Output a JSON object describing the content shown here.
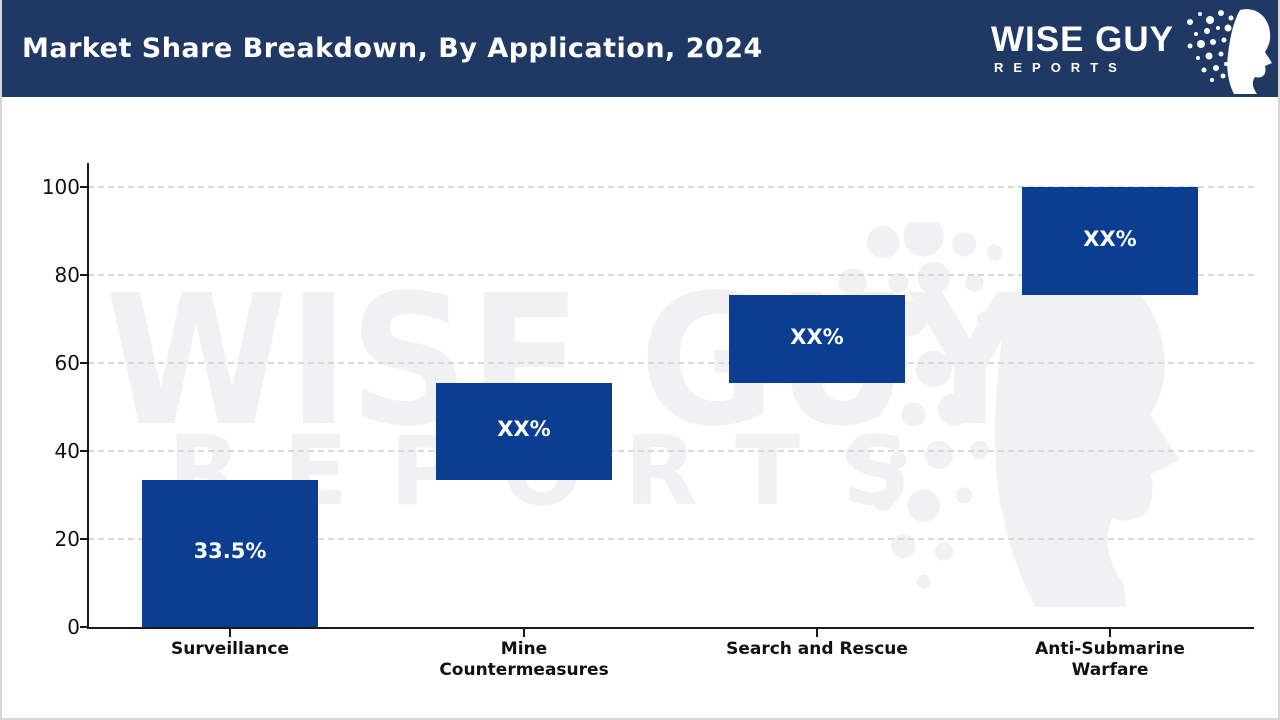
{
  "header": {
    "title": "Market Share Breakdown, By Application, 2024",
    "logo": {
      "line1": "WISE GUY",
      "line2": "REPORTS"
    }
  },
  "watermark": {
    "line1": "WISE GUY",
    "line2": "REPORTS"
  },
  "colors": {
    "header_bg": "#1f3864",
    "bar": "#0b3d91",
    "grid": "#d8d8d8",
    "axis": "#1a1a1a",
    "watermark": "#f1f1f4",
    "bar_label": "#ffffff",
    "border": "#d6d6d6"
  },
  "chart_data": {
    "type": "bar",
    "subtype": "waterfall",
    "title": "Market Share Breakdown, By Application, 2024",
    "categories": [
      "Surveillance",
      "Mine\nCountermeasures",
      "Search and Rescue",
      "Anti-Submarine\nWarfare"
    ],
    "segments": [
      {
        "category": "Surveillance",
        "start": 0,
        "end": 33.5,
        "value_label": "33.5%"
      },
      {
        "category": "Mine Countermeasures",
        "start": 33.5,
        "end": 55.5,
        "value_label": "XX%"
      },
      {
        "category": "Search and Rescue",
        "start": 55.5,
        "end": 75.5,
        "value_label": "XX%"
      },
      {
        "category": "Anti-Submarine Warfare",
        "start": 75.5,
        "end": 100,
        "value_label": "XX%"
      }
    ],
    "y_ticks": [
      0,
      20,
      40,
      60,
      80,
      100
    ],
    "ylim": [
      0,
      105
    ],
    "xlabel": "",
    "ylabel": "",
    "grid": "dashed-horizontal",
    "legend": "none"
  }
}
